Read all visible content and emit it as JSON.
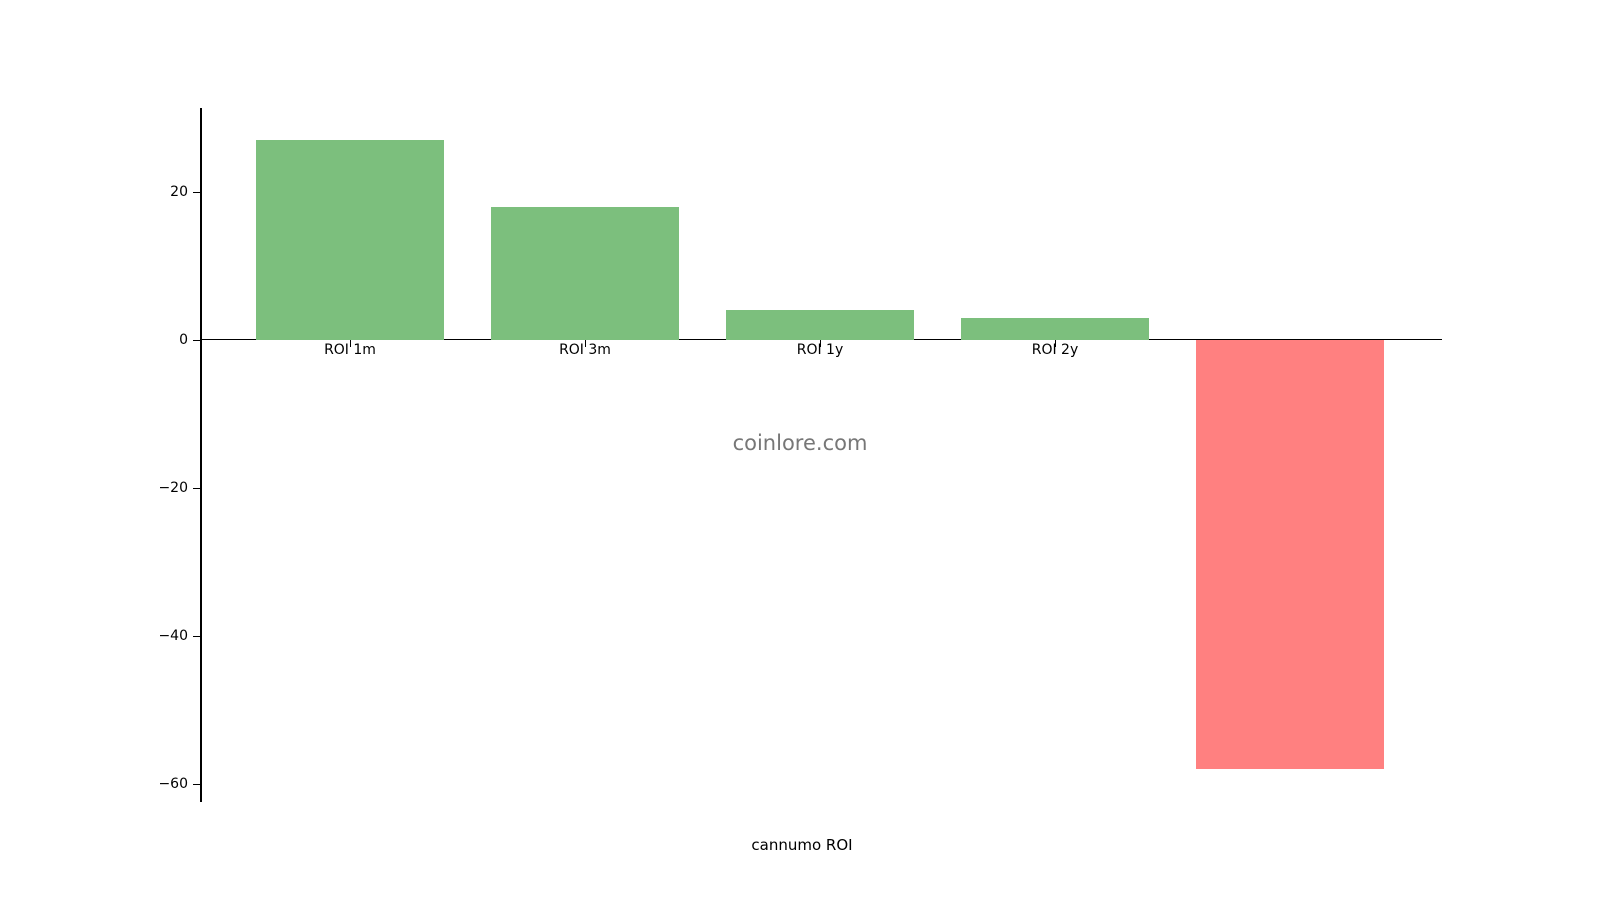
{
  "page": {
    "background_color": "#ffffff"
  },
  "watermark": {
    "text": "coinlore.com",
    "color": "#777777"
  },
  "chart_data": {
    "type": "bar",
    "title": "",
    "xlabel": "cannumo ROI",
    "ylabel": "",
    "categories": [
      "ROI 1m",
      "ROI 3m",
      "ROI 1y",
      "ROI 2y",
      ""
    ],
    "values": [
      27,
      18,
      4,
      3,
      -58
    ],
    "positive_color": "#7cbf7d",
    "negative_color": "#ff8080",
    "bar_colors": [
      "#7cbf7d",
      "#7cbf7d",
      "#7cbf7d",
      "#7cbf7d",
      "#ff8080"
    ],
    "yticks": [
      20,
      0,
      -20,
      -40,
      -60
    ],
    "ytick_labels": [
      "20",
      "0",
      "−20",
      "−40",
      "−60"
    ],
    "ylim": [
      -62.2,
      31.4
    ],
    "grid": false,
    "legend_position": "none",
    "axis_color": "#000000",
    "baseline_value": 0
  }
}
